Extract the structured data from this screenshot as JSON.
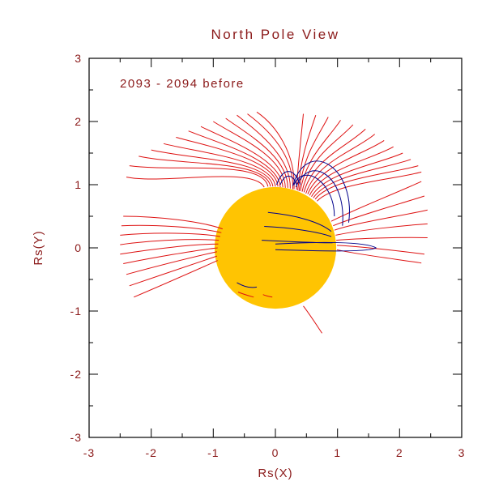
{
  "page": {
    "background": "#FFFFFF"
  },
  "chart_data": {
    "type": "line",
    "title": "North Pole View",
    "annotation": "2093 - 2094 before",
    "xlabel": "Rs(X)",
    "ylabel": "Rs(Y)",
    "xlim": [
      -3,
      3
    ],
    "ylim": [
      -3,
      3
    ],
    "xticks": [
      -3,
      -2,
      -1,
      0,
      1,
      2,
      3
    ],
    "yticks": [
      -3,
      -2,
      -1,
      0,
      1,
      2,
      3
    ],
    "xtick_labels": [
      "-3",
      "-2",
      "-1",
      "0",
      "1",
      "2",
      "3"
    ],
    "ytick_labels": [
      "-3",
      "-2",
      "-1",
      "0",
      "1",
      "2",
      "3"
    ],
    "minor_tick_step": 0.5,
    "grid": false,
    "text_color": "#8B1A1A",
    "frame_color": "#000000",
    "sun": {
      "cx": 0.0,
      "cy": 0.0,
      "r": 0.98,
      "color": "#FFC402"
    },
    "series": [
      {
        "name": "open-field-lines",
        "color": "#DE1212",
        "width": 1,
        "curves": [
          [
            [
              -0.18,
              0.96
            ],
            [
              -0.35,
              1.3
            ],
            [
              -1.8,
              1.0
            ],
            [
              -2.4,
              1.12
            ]
          ],
          [
            [
              -0.12,
              0.97
            ],
            [
              -0.2,
              1.4
            ],
            [
              -1.6,
              1.2
            ],
            [
              -2.35,
              1.3
            ]
          ],
          [
            [
              -0.08,
              0.97
            ],
            [
              -0.15,
              1.4
            ],
            [
              -1.5,
              1.3
            ],
            [
              -2.2,
              1.45
            ]
          ],
          [
            [
              -0.04,
              0.97
            ],
            [
              -0.1,
              1.4
            ],
            [
              -1.35,
              1.4
            ],
            [
              -2.0,
              1.55
            ]
          ],
          [
            [
              0.0,
              0.97
            ],
            [
              -0.05,
              1.4
            ],
            [
              -1.2,
              1.5
            ],
            [
              -1.8,
              1.65
            ]
          ],
          [
            [
              0.04,
              0.97
            ],
            [
              0.0,
              1.4
            ],
            [
              -1.05,
              1.6
            ],
            [
              -1.6,
              1.75
            ]
          ],
          [
            [
              0.08,
              0.96
            ],
            [
              0.05,
              1.4
            ],
            [
              -0.9,
              1.65
            ],
            [
              -1.4,
              1.85
            ]
          ],
          [
            [
              0.12,
              0.96
            ],
            [
              0.1,
              1.4
            ],
            [
              -0.75,
              1.7
            ],
            [
              -1.2,
              1.92
            ]
          ],
          [
            [
              0.16,
              0.95
            ],
            [
              0.15,
              1.45
            ],
            [
              -0.6,
              1.75
            ],
            [
              -1.0,
              2.0
            ]
          ],
          [
            [
              0.2,
              0.95
            ],
            [
              0.2,
              1.45
            ],
            [
              -0.45,
              1.8
            ],
            [
              -0.8,
              2.05
            ]
          ],
          [
            [
              0.24,
              0.94
            ],
            [
              0.25,
              1.45
            ],
            [
              -0.3,
              1.85
            ],
            [
              -0.62,
              2.1
            ]
          ],
          [
            [
              0.28,
              0.93
            ],
            [
              0.3,
              1.5
            ],
            [
              -0.15,
              1.9
            ],
            [
              -0.45,
              2.12
            ]
          ],
          [
            [
              0.3,
              0.93
            ],
            [
              0.33,
              1.5
            ],
            [
              0.0,
              1.95
            ],
            [
              -0.3,
              2.15
            ]
          ],
          [
            [
              0.34,
              0.92
            ],
            [
              0.38,
              1.5
            ],
            [
              0.42,
              1.8
            ],
            [
              0.45,
              2.12
            ]
          ],
          [
            [
              0.36,
              0.91
            ],
            [
              0.42,
              1.5
            ],
            [
              0.55,
              1.8
            ],
            [
              0.65,
              2.1
            ]
          ],
          [
            [
              0.38,
              0.9
            ],
            [
              0.46,
              1.5
            ],
            [
              0.7,
              1.78
            ],
            [
              0.85,
              2.07
            ]
          ],
          [
            [
              0.4,
              0.9
            ],
            [
              0.5,
              1.45
            ],
            [
              0.85,
              1.72
            ],
            [
              1.05,
              2.02
            ]
          ],
          [
            [
              0.43,
              0.89
            ],
            [
              0.55,
              1.45
            ],
            [
              1.0,
              1.68
            ],
            [
              1.25,
              1.95
            ]
          ],
          [
            [
              0.46,
              0.88
            ],
            [
              0.6,
              1.4
            ],
            [
              1.15,
              1.6
            ],
            [
              1.45,
              1.88
            ]
          ],
          [
            [
              0.49,
              0.86
            ],
            [
              0.65,
              1.35
            ],
            [
              1.3,
              1.55
            ],
            [
              1.6,
              1.8
            ]
          ],
          [
            [
              0.52,
              0.85
            ],
            [
              0.7,
              1.3
            ],
            [
              1.42,
              1.48
            ],
            [
              1.75,
              1.7
            ]
          ],
          [
            [
              0.55,
              0.83
            ],
            [
              0.75,
              1.25
            ],
            [
              1.55,
              1.4
            ],
            [
              1.9,
              1.6
            ]
          ],
          [
            [
              0.58,
              0.81
            ],
            [
              0.8,
              1.2
            ],
            [
              1.65,
              1.32
            ],
            [
              2.05,
              1.5
            ]
          ],
          [
            [
              0.61,
              0.79
            ],
            [
              0.85,
              1.15
            ],
            [
              1.75,
              1.25
            ],
            [
              2.18,
              1.4
            ]
          ],
          [
            [
              0.64,
              0.77
            ],
            [
              0.9,
              1.1
            ],
            [
              1.85,
              1.17
            ],
            [
              2.3,
              1.3
            ]
          ],
          [
            [
              0.67,
              0.74
            ],
            [
              0.95,
              1.02
            ],
            [
              1.9,
              1.08
            ],
            [
              2.35,
              1.2
            ]
          ],
          [
            [
              0.9,
              0.42
            ],
            [
              1.25,
              0.6
            ],
            [
              1.9,
              0.85
            ],
            [
              2.35,
              1.05
            ]
          ],
          [
            [
              0.93,
              0.35
            ],
            [
              1.3,
              0.5
            ],
            [
              1.95,
              0.68
            ],
            [
              2.4,
              0.82
            ]
          ],
          [
            [
              0.95,
              0.28
            ],
            [
              1.3,
              0.4
            ],
            [
              2.0,
              0.5
            ],
            [
              2.45,
              0.6
            ]
          ],
          [
            [
              0.97,
              0.2
            ],
            [
              1.35,
              0.28
            ],
            [
              2.0,
              0.35
            ],
            [
              2.45,
              0.38
            ]
          ],
          [
            [
              0.98,
              0.12
            ],
            [
              1.35,
              0.15
            ],
            [
              2.0,
              0.17
            ],
            [
              2.45,
              0.16
            ]
          ],
          [
            [
              0.99,
              0.04
            ],
            [
              1.35,
              0.02
            ],
            [
              2.0,
              -0.05
            ],
            [
              2.4,
              -0.1
            ]
          ],
          [
            [
              0.99,
              -0.03
            ],
            [
              1.3,
              -0.1
            ],
            [
              1.95,
              -0.18
            ],
            [
              2.35,
              -0.24
            ]
          ],
          [
            [
              -0.85,
              0.3
            ],
            [
              -1.2,
              0.42
            ],
            [
              -1.9,
              0.5
            ],
            [
              -2.45,
              0.5
            ]
          ],
          [
            [
              -0.87,
              0.24
            ],
            [
              -1.25,
              0.33
            ],
            [
              -1.95,
              0.37
            ],
            [
              -2.48,
              0.35
            ]
          ],
          [
            [
              -0.89,
              0.18
            ],
            [
              -1.25,
              0.24
            ],
            [
              -1.95,
              0.25
            ],
            [
              -2.5,
              0.2
            ]
          ],
          [
            [
              -0.91,
              0.12
            ],
            [
              -1.3,
              0.15
            ],
            [
              -2.0,
              0.12
            ],
            [
              -2.5,
              0.05
            ]
          ],
          [
            [
              -0.92,
              0.06
            ],
            [
              -1.3,
              0.06
            ],
            [
              -2.0,
              -0.02
            ],
            [
              -2.5,
              -0.1
            ]
          ],
          [
            [
              -0.93,
              0.0
            ],
            [
              -1.3,
              -0.04
            ],
            [
              -2.0,
              -0.16
            ],
            [
              -2.45,
              -0.25
            ]
          ],
          [
            [
              -0.94,
              -0.06
            ],
            [
              -1.3,
              -0.14
            ],
            [
              -1.95,
              -0.3
            ],
            [
              -2.4,
              -0.42
            ]
          ],
          [
            [
              -0.94,
              -0.13
            ],
            [
              -1.28,
              -0.24
            ],
            [
              -1.9,
              -0.45
            ],
            [
              -2.35,
              -0.6
            ]
          ],
          [
            [
              -0.93,
              -0.2
            ],
            [
              -1.25,
              -0.34
            ],
            [
              -1.85,
              -0.6
            ],
            [
              -2.28,
              -0.78
            ]
          ],
          [
            [
              0.45,
              -0.92
            ],
            [
              0.55,
              -1.05
            ],
            [
              0.65,
              -1.2
            ],
            [
              0.75,
              -1.35
            ]
          ],
          [
            [
              -0.6,
              -0.7
            ],
            [
              -0.5,
              -0.74
            ],
            [
              -0.42,
              -0.76
            ],
            [
              -0.35,
              -0.78
            ]
          ],
          [
            [
              -0.2,
              -0.74
            ],
            [
              -0.15,
              -0.76
            ],
            [
              -0.1,
              -0.77
            ],
            [
              -0.05,
              -0.78
            ]
          ]
        ]
      },
      {
        "name": "closed-field-lines",
        "color": "#00008B",
        "width": 1,
        "curves": [
          [
            [
              0.28,
              0.98
            ],
            [
              0.5,
              1.75
            ],
            [
              1.3,
              1.3
            ],
            [
              1.18,
              0.4
            ]
          ],
          [
            [
              0.33,
              0.96
            ],
            [
              0.55,
              1.5
            ],
            [
              1.15,
              1.15
            ],
            [
              1.08,
              0.35
            ]
          ],
          [
            [
              0.3,
              1.0
            ],
            [
              0.45,
              1.35
            ],
            [
              0.95,
              1.05
            ],
            [
              0.95,
              0.5
            ]
          ],
          [
            [
              0.02,
              1.0
            ],
            [
              0.12,
              1.28
            ],
            [
              0.3,
              1.28
            ],
            [
              0.4,
              1.0
            ]
          ],
          [
            [
              0.08,
              1.0
            ],
            [
              0.15,
              1.18
            ],
            [
              0.28,
              1.18
            ],
            [
              0.34,
              1.0
            ]
          ],
          [
            [
              -0.12,
              0.56
            ],
            [
              0.3,
              0.52
            ],
            [
              0.7,
              0.42
            ],
            [
              0.9,
              0.26
            ]
          ],
          [
            [
              -0.18,
              0.34
            ],
            [
              0.25,
              0.32
            ],
            [
              0.65,
              0.26
            ],
            [
              0.9,
              0.18
            ]
          ],
          [
            [
              -0.22,
              0.12
            ],
            [
              0.25,
              0.1
            ],
            [
              0.65,
              0.08
            ],
            [
              0.92,
              0.08
            ]
          ],
          [
            [
              0.0,
              0.06
            ],
            [
              0.7,
              0.1
            ],
            [
              1.45,
              0.1
            ],
            [
              1.62,
              0.0
            ],
            [
              1.5,
              -0.07
            ],
            [
              0.7,
              -0.05
            ],
            [
              0.0,
              -0.03
            ]
          ],
          [
            [
              -0.62,
              -0.55
            ],
            [
              -0.5,
              -0.62
            ],
            [
              -0.4,
              -0.64
            ],
            [
              -0.3,
              -0.62
            ]
          ]
        ]
      }
    ]
  }
}
